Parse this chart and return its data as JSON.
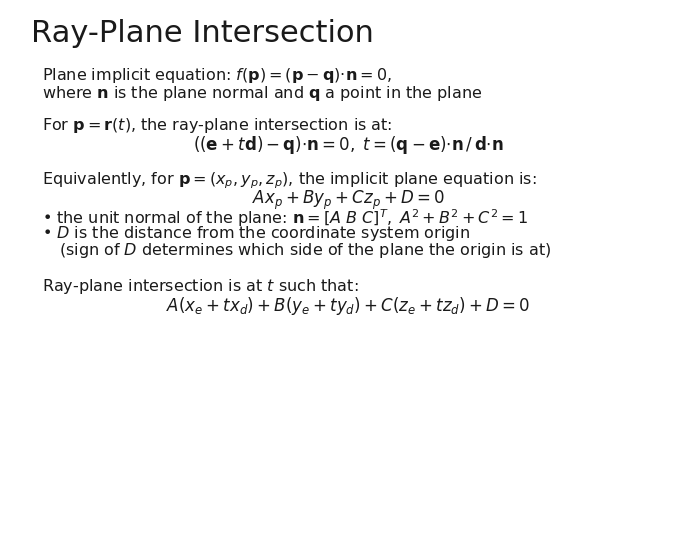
{
  "title": "Ray-Plane Intersection",
  "background_color": "#ffffff",
  "text_color": "#1a1a1a",
  "title_fontsize": 22,
  "body_fontsize": 11.5,
  "fig_width": 6.97,
  "fig_height": 5.53,
  "dpi": 100
}
